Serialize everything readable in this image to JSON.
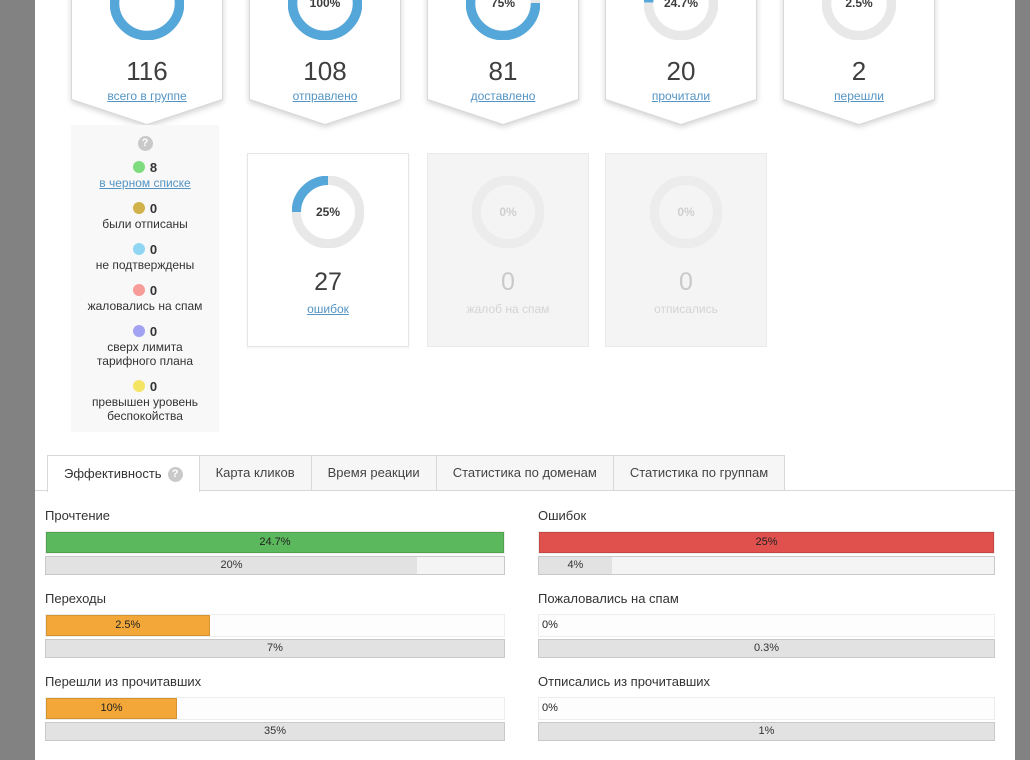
{
  "top_cards": [
    {
      "percent_label": "",
      "progress": 100,
      "value": "116",
      "link_label": "всего в группе"
    },
    {
      "percent_label": "100%",
      "progress": 100,
      "value": "108",
      "link_label": "отправлено"
    },
    {
      "percent_label": "75%",
      "progress": 75,
      "value": "81",
      "link_label": "доставлено"
    },
    {
      "percent_label": "24.7%",
      "progress": 24.7,
      "value": "20",
      "link_label": "прочитали"
    },
    {
      "percent_label": "2.5%",
      "progress": 2.5,
      "value": "2",
      "link_label": "перешли"
    }
  ],
  "blacklist_panel": {
    "help": "?",
    "items": [
      {
        "color": "#7edc7e",
        "value": "8",
        "label": "в черном списке"
      },
      {
        "color": "#d0b14a",
        "value": "0",
        "label": "были отписаны"
      },
      {
        "color": "#90d5f2",
        "value": "0",
        "label": "не подтверждены"
      },
      {
        "color": "#f79d99",
        "value": "0",
        "label": "жаловались на спам"
      },
      {
        "color": "#a2a2f2",
        "value": "0",
        "label": "сверх лимита тарифного плана"
      },
      {
        "color": "#f5e565",
        "value": "0",
        "label": "превышен уровень беспокойства"
      }
    ]
  },
  "mid_cards": [
    {
      "percent_label": "25%",
      "progress": 25,
      "value": "27",
      "link_label": "ошибок"
    },
    {
      "percent_label": "0%",
      "progress": 0,
      "value": "0",
      "link_label": "жалоб на спам"
    },
    {
      "percent_label": "0%",
      "progress": 0,
      "value": "0",
      "link_label": "отписались"
    }
  ],
  "tabs": {
    "active_help": "?",
    "items": [
      {
        "label": "Эффективность"
      },
      {
        "label": "Карта кликов"
      },
      {
        "label": "Время реакции"
      },
      {
        "label": "Статистика по доменам"
      },
      {
        "label": "Статистика по группам"
      }
    ]
  },
  "effectiveness": {
    "left": [
      {
        "title": "Прочтение",
        "value_label": "24.7%",
        "value_width": 100,
        "color": "#5cb85c",
        "avg_label": "20%",
        "avg_width": 81
      },
      {
        "title": "Переходы",
        "value_label": "2.5%",
        "value_width": 35.7,
        "color": "#f2a738",
        "avg_label": "7%",
        "avg_width": 100
      },
      {
        "title": "Перешли из прочитавших",
        "value_label": "10%",
        "value_width": 28.6,
        "color": "#f2a738",
        "avg_label": "35%",
        "avg_width": 100
      }
    ],
    "right": [
      {
        "title": "Ошибок",
        "value_label": "25%",
        "value_width": 100,
        "color": "#e0514e",
        "avg_label": "4%",
        "avg_width": 16
      },
      {
        "title": "Пожаловались на спам",
        "value_label": "0%",
        "value_width": 0,
        "color": "#f2a738",
        "avg_label": "0.3%",
        "avg_width": 100
      },
      {
        "title": "Отписались из прочитавших",
        "value_label": "0%",
        "value_width": 0,
        "color": "#f2a738",
        "avg_label": "1%",
        "avg_width": 100
      }
    ]
  },
  "colors": {
    "accent_blue": "#55a7d9",
    "green": "#5cb85c",
    "red": "#e0514e",
    "orange": "#f2a738",
    "outer_background": "#828282"
  }
}
